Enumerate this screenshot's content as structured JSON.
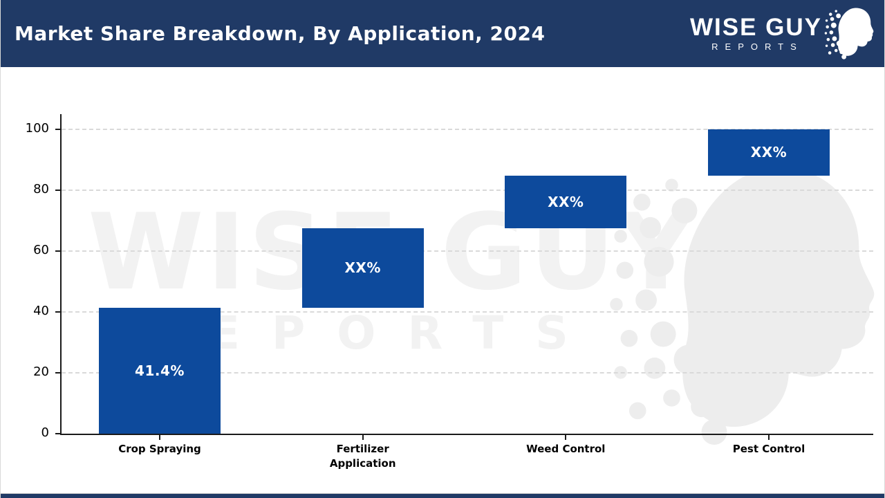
{
  "header": {
    "title": "Market Share Breakdown, By Application, 2024",
    "logo": {
      "line1": "WISE GUY",
      "line2": "REPORTS",
      "icon": "dotted-face-profile"
    }
  },
  "watermark": {
    "line1": "WISE GUY",
    "line2": "REPORTS",
    "icon": "dotted-face-profile"
  },
  "colors": {
    "header_bg": "#203a66",
    "bar": "#0d4a9c",
    "bar_label_text": "#ffffff",
    "gridline": "#d9d9d9",
    "axis": "#1a1a1a",
    "watermark": "#f2f2f2"
  },
  "chart_data": {
    "type": "bar",
    "subtype": "waterfall-floating-bars",
    "title": "Market Share Breakdown, By Application, 2024",
    "xlabel": "",
    "ylabel": "",
    "categories": [
      "Crop Spraying",
      "Fertilizer Application",
      "Weed Control",
      "Pest Control"
    ],
    "bars": [
      {
        "category": "Crop Spraying",
        "label": "41.4%",
        "start": 0,
        "end": 41.4
      },
      {
        "category": "Fertilizer Application",
        "label": "XX%",
        "start": 41.4,
        "end": 67.5
      },
      {
        "category": "Weed Control",
        "label": "XX%",
        "start": 67.5,
        "end": 84.8
      },
      {
        "category": "Pest Control",
        "label": "XX%",
        "start": 84.8,
        "end": 100
      }
    ],
    "yticks": [
      0,
      20,
      40,
      60,
      80,
      100
    ],
    "ylim": [
      0,
      105
    ],
    "grid": "horizontal-dashed",
    "legend": "none",
    "bar_color": "#0d4a9c"
  }
}
